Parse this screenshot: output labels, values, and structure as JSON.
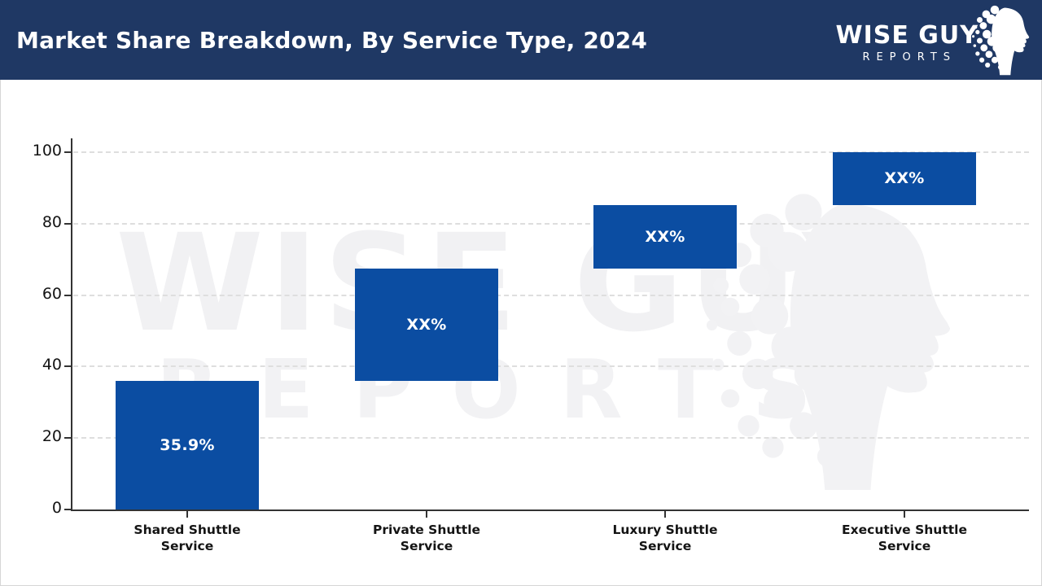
{
  "header": {
    "title": "Market Share Breakdown, By Service Type, 2024",
    "background_color": "#1f3864",
    "brand": {
      "line1": "WISE GUY",
      "line2": "REPORTS"
    }
  },
  "watermark": {
    "line1": "WISE GUY",
    "line2": "REPORTS"
  },
  "chart_data": {
    "type": "bar",
    "subtype": "stacked-waterfall-percentage",
    "title": "Market Share Breakdown, By Service Type, 2024",
    "categories": [
      "Shared Shuttle Service",
      "Private Shuttle Service",
      "Luxury Shuttle Service",
      "Executive Shuttle Service"
    ],
    "bars": [
      {
        "category": "Shared Shuttle Service",
        "category_lines": [
          "Shared Shuttle",
          "Service"
        ],
        "label": "35.9%",
        "start": 0,
        "end": 35.9
      },
      {
        "category": "Private Shuttle Service",
        "category_lines": [
          "Private Shuttle",
          "Service"
        ],
        "label": "XX%",
        "start": 35.9,
        "end": 67.5
      },
      {
        "category": "Luxury Shuttle Service",
        "category_lines": [
          "Luxury Shuttle",
          "Service"
        ],
        "label": "XX%",
        "start": 67.5,
        "end": 85.3
      },
      {
        "category": "Executive Shuttle Service",
        "category_lines": [
          "Executive Shuttle",
          "Service"
        ],
        "label": "XX%",
        "start": 85.3,
        "end": 100
      }
    ],
    "yticks": [
      0,
      20,
      40,
      60,
      80,
      100
    ],
    "ylim": [
      0,
      104
    ],
    "xlabel": "",
    "ylabel": "",
    "bar_color": "#0b4da2",
    "grid": {
      "horizontal": true,
      "style": "dashed",
      "color": "#dedede"
    },
    "axis_color": "#333333",
    "value_label_color": "#ffffff",
    "legend": "none"
  }
}
